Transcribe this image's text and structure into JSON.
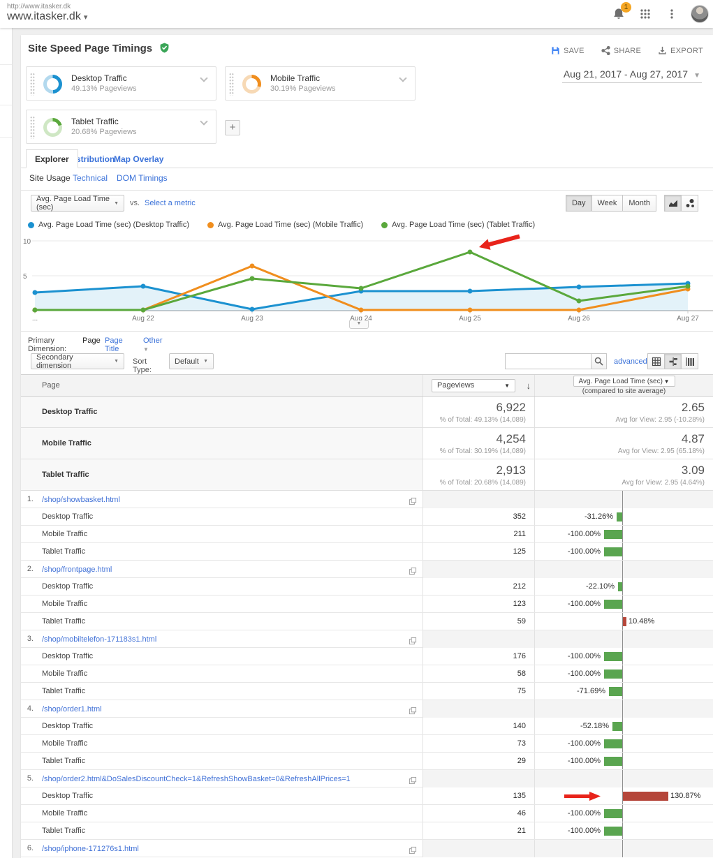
{
  "topbar": {
    "property_url": "http://www.itasker.dk",
    "property_name": "www.itasker.dk",
    "notification_badge": "1"
  },
  "report": {
    "title": "Site Speed Page Timings",
    "actions": {
      "save": "SAVE",
      "share": "SHARE",
      "export": "EXPORT"
    },
    "date_range": "Aug 21, 2017 - Aug 27, 2017"
  },
  "segments": [
    {
      "name": "Desktop Traffic",
      "detail": "49.13% Pageviews",
      "pct": 49.13,
      "color": "#1b91d0",
      "color_light": "#b3d9ee"
    },
    {
      "name": "Mobile Traffic",
      "detail": "30.19% Pageviews",
      "pct": 30.19,
      "color": "#f08e1e",
      "color_light": "#f7d9b5"
    },
    {
      "name": "Tablet Traffic",
      "detail": "20.68% Pageviews",
      "pct": 20.68,
      "color": "#5aa83c",
      "color_light": "#cfe7c4"
    }
  ],
  "add_segment_label": "+",
  "explorer_tabs": {
    "items": [
      "Explorer",
      "Distribution",
      "Map Overlay"
    ],
    "active": "Explorer"
  },
  "metric_groups": {
    "items": [
      "Site Usage",
      "Technical",
      "DOM Timings"
    ],
    "active": "Site Usage"
  },
  "metric_bar": {
    "metric": "Avg. Page Load Time (sec)",
    "vs": "vs.",
    "select_metric": "Select a metric",
    "granularity": [
      "Day",
      "Week",
      "Month"
    ],
    "granularity_active": "Day"
  },
  "icons": {
    "topbar": [
      "bell-icon",
      "apps-grid-icon",
      "more-vert-icon",
      "avatar"
    ],
    "title_badge": "verified-shield-icon",
    "chart_type_buttons": [
      "line-chart-icon",
      "motion-chart-icon"
    ],
    "view_toggle_buttons": [
      "table-view-icon",
      "comparison-view-icon",
      "performance-view-icon"
    ],
    "annotations": "red-arrow"
  },
  "colors": {
    "desktop": "#1b91d0",
    "mobile": "#f08e1e",
    "tablet": "#5aa83c",
    "negative_bar": "#5aa550",
    "positive_bar": "#b5463a",
    "notification_badge": "#f5a623",
    "link": "#3b72d9",
    "annotation_arrow": "#e8231a"
  },
  "chart_data": {
    "type": "line",
    "x": [
      "Aug 21",
      "Aug 22",
      "Aug 23",
      "Aug 24",
      "Aug 25",
      "Aug 26",
      "Aug 27"
    ],
    "x_tick_labels": [
      "...",
      "Aug 22",
      "Aug 23",
      "Aug 24",
      "Aug 25",
      "Aug 26",
      "Aug 27"
    ],
    "ylim": [
      0,
      10
    ],
    "yticks": [
      5,
      10
    ],
    "series": [
      {
        "name": "Avg. Page Load Time (sec) (Desktop Traffic)",
        "color": "#1b91d0",
        "area": true,
        "values": [
          2.6,
          3.5,
          0.2,
          2.8,
          2.8,
          3.4,
          3.9
        ]
      },
      {
        "name": "Avg. Page Load Time (sec) (Mobile Traffic)",
        "color": "#f08e1e",
        "area": false,
        "values": [
          0.1,
          0.1,
          6.4,
          0.1,
          0.1,
          0.1,
          3.1
        ]
      },
      {
        "name": "Avg. Page Load Time (sec) (Tablet Traffic)",
        "color": "#5aa83c",
        "area": false,
        "values": [
          0.1,
          0.1,
          4.6,
          3.2,
          8.4,
          1.4,
          3.5
        ]
      }
    ],
    "annotation": {
      "type": "red-arrow",
      "target": "Tablet Traffic peak on Aug 25"
    }
  },
  "dimension_bar": {
    "label": "Primary Dimension:",
    "items": [
      "Page",
      "Page Title",
      "Other"
    ],
    "active": "Page"
  },
  "toolbar": {
    "secondary_dimension": "Secondary dimension",
    "sort_type_label": "Sort Type:",
    "sort_type_value": "Default",
    "search_value": "",
    "advanced": "advanced"
  },
  "table": {
    "page_header": "Page",
    "pageviews_header": "Pageviews",
    "metric_header": "Avg. Page Load Time (sec)",
    "metric_subheader": "(compared to site average)",
    "summary": [
      {
        "segment": "Desktop Traffic",
        "pageviews": "6,922",
        "pageviews_sub": "% of Total: 49.13% (14,089)",
        "metric": "2.65",
        "metric_sub": "Avg for View: 2.95 (-10.28%)"
      },
      {
        "segment": "Mobile Traffic",
        "pageviews": "4,254",
        "pageviews_sub": "% of Total: 30.19% (14,089)",
        "metric": "4.87",
        "metric_sub": "Avg for View: 2.95 (65.18%)"
      },
      {
        "segment": "Tablet Traffic",
        "pageviews": "2,913",
        "pageviews_sub": "% of Total: 20.68% (14,089)",
        "metric": "3.09",
        "metric_sub": "Avg for View: 2.95 (4.64%)"
      }
    ],
    "groups": [
      {
        "index": "1.",
        "url": "/shop/showbasket.html",
        "rows": [
          {
            "segment": "Desktop Traffic",
            "pageviews": "352",
            "delta": "-31.26%"
          },
          {
            "segment": "Mobile Traffic",
            "pageviews": "211",
            "delta": "-100.00%"
          },
          {
            "segment": "Tablet Traffic",
            "pageviews": "125",
            "delta": "-100.00%"
          }
        ]
      },
      {
        "index": "2.",
        "url": "/shop/frontpage.html",
        "rows": [
          {
            "segment": "Desktop Traffic",
            "pageviews": "212",
            "delta": "-22.10%"
          },
          {
            "segment": "Mobile Traffic",
            "pageviews": "123",
            "delta": "-100.00%"
          },
          {
            "segment": "Tablet Traffic",
            "pageviews": "59",
            "delta": "10.48%"
          }
        ]
      },
      {
        "index": "3.",
        "url": "/shop/mobiltelefon-171183s1.html",
        "rows": [
          {
            "segment": "Desktop Traffic",
            "pageviews": "176",
            "delta": "-100.00%"
          },
          {
            "segment": "Mobile Traffic",
            "pageviews": "58",
            "delta": "-100.00%"
          },
          {
            "segment": "Tablet Traffic",
            "pageviews": "75",
            "delta": "-71.69%"
          }
        ]
      },
      {
        "index": "4.",
        "url": "/shop/order1.html",
        "rows": [
          {
            "segment": "Desktop Traffic",
            "pageviews": "140",
            "delta": "-52.18%"
          },
          {
            "segment": "Mobile Traffic",
            "pageviews": "73",
            "delta": "-100.00%"
          },
          {
            "segment": "Tablet Traffic",
            "pageviews": "29",
            "delta": "-100.00%"
          }
        ]
      },
      {
        "index": "5.",
        "url": "/shop/order2.html&DoSalesDiscountCheck=1&RefreshShowBasket=0&RefreshAllPrices=1",
        "rows": [
          {
            "segment": "Desktop Traffic",
            "pageviews": "135",
            "delta": "130.87%",
            "annotated": true
          },
          {
            "segment": "Mobile Traffic",
            "pageviews": "46",
            "delta": "-100.00%"
          },
          {
            "segment": "Tablet Traffic",
            "pageviews": "21",
            "delta": "-100.00%"
          }
        ]
      },
      {
        "index": "6.",
        "url": "/shop/iphone-171276s1.html",
        "rows": []
      }
    ]
  }
}
